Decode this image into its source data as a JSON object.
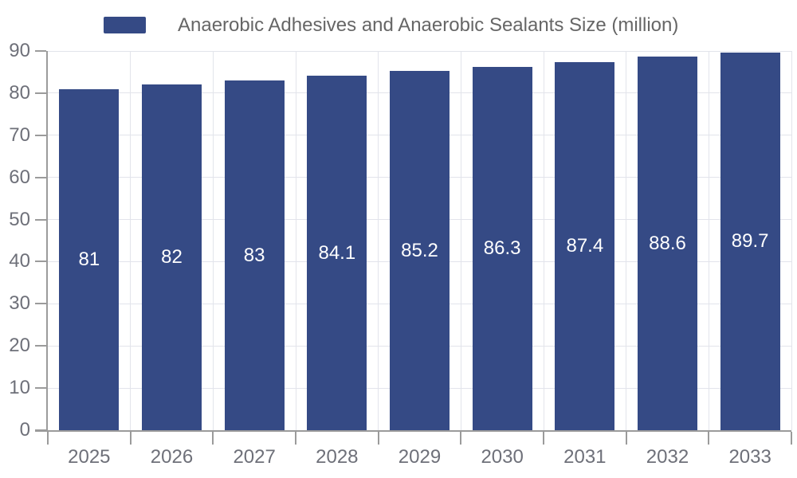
{
  "chart_data": {
    "type": "bar",
    "title": "Anaerobic Adhesives and Anaerobic Sealants Size (million)",
    "legend_label": "Anaerobic Adhesives and Anaerobic Sealants Size (million)",
    "legend_position": "top-center",
    "categories": [
      "2025",
      "2026",
      "2027",
      "2028",
      "2029",
      "2030",
      "2031",
      "2032",
      "2033"
    ],
    "values": [
      81,
      82,
      83,
      84.1,
      85.2,
      86.3,
      87.4,
      88.6,
      89.7
    ],
    "data_labels": [
      "81",
      "82",
      "83",
      "84.1",
      "85.2",
      "86.3",
      "87.4",
      "88.6",
      "89.7"
    ],
    "xlabel": "",
    "ylabel": "",
    "ylim": [
      0,
      90
    ],
    "yticks": [
      0,
      10,
      20,
      30,
      40,
      50,
      60,
      70,
      80,
      90
    ],
    "grid": true,
    "colors": {
      "bar": "#354A85",
      "bar_label": "#FFFFFF",
      "axis_line": "#9B9B9B",
      "gridline": "#E2E4EB",
      "axis_text": "#6E7079",
      "legend_text": "#666666",
      "background": "#FFFFFF"
    }
  }
}
